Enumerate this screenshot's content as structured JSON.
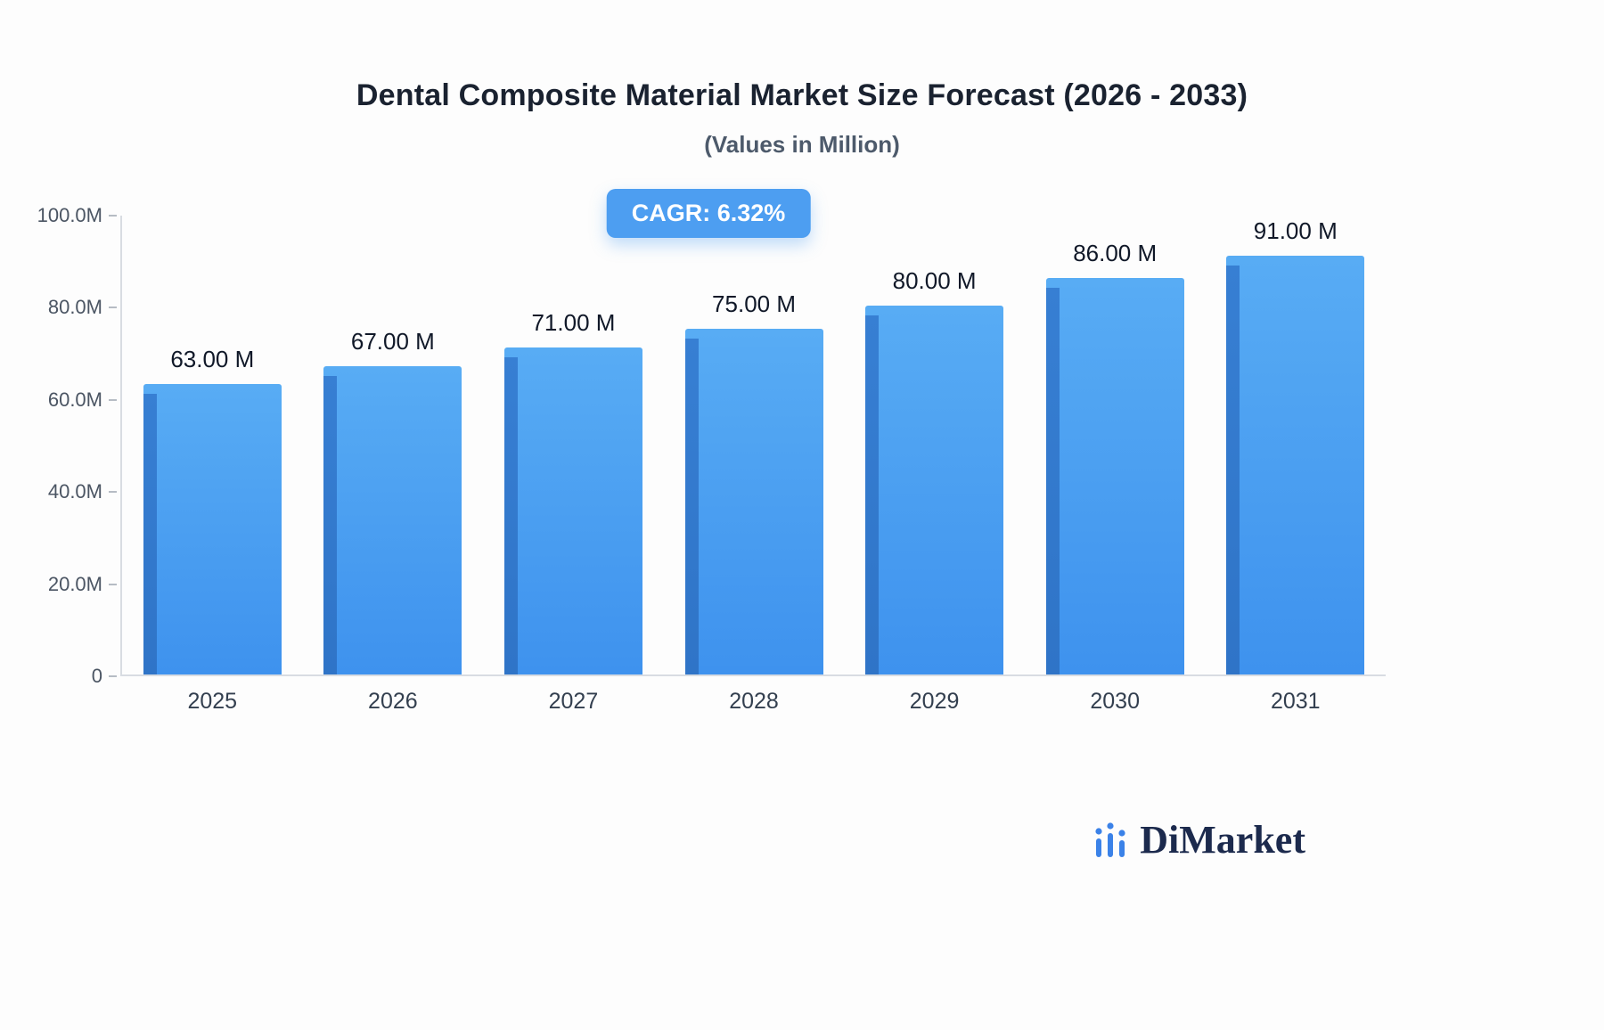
{
  "chart_data": {
    "type": "bar",
    "title": "Dental Composite Material Market Size Forecast (2026 - 2033)",
    "subtitle": "(Values in Million)",
    "annotation": "CAGR: 6.32%",
    "categories": [
      "2025",
      "2026",
      "2027",
      "2028",
      "2029",
      "2030",
      "2031"
    ],
    "values": [
      63,
      67,
      71,
      75,
      80,
      86,
      91
    ],
    "value_labels": [
      "63.00 M",
      "67.00 M",
      "71.00 M",
      "75.00 M",
      "80.00 M",
      "86.00 M",
      "91.00 M"
    ],
    "ylim": [
      0,
      100
    ],
    "yticks": [
      {
        "label": "100.0M",
        "value": 100
      },
      {
        "label": "80.0M",
        "value": 80
      },
      {
        "label": "60.0M",
        "value": 60
      },
      {
        "label": "40.0M",
        "value": 40
      },
      {
        "label": "20.0M",
        "value": 20
      },
      {
        "label": "0",
        "value": 0
      }
    ],
    "xlabel": "",
    "ylabel": "",
    "grid": false,
    "legend": false
  },
  "colors": {
    "bar_top": "#58acf4",
    "bar_bottom": "#3e92ee",
    "bar_side": "#2f74c7",
    "badge_background": "#4d9ef1",
    "badge_text": "#ffffff",
    "logo_blue": "#3b82e8",
    "logo_text": "#1c2a4d"
  },
  "footer": {
    "brand": "DiMarket"
  }
}
